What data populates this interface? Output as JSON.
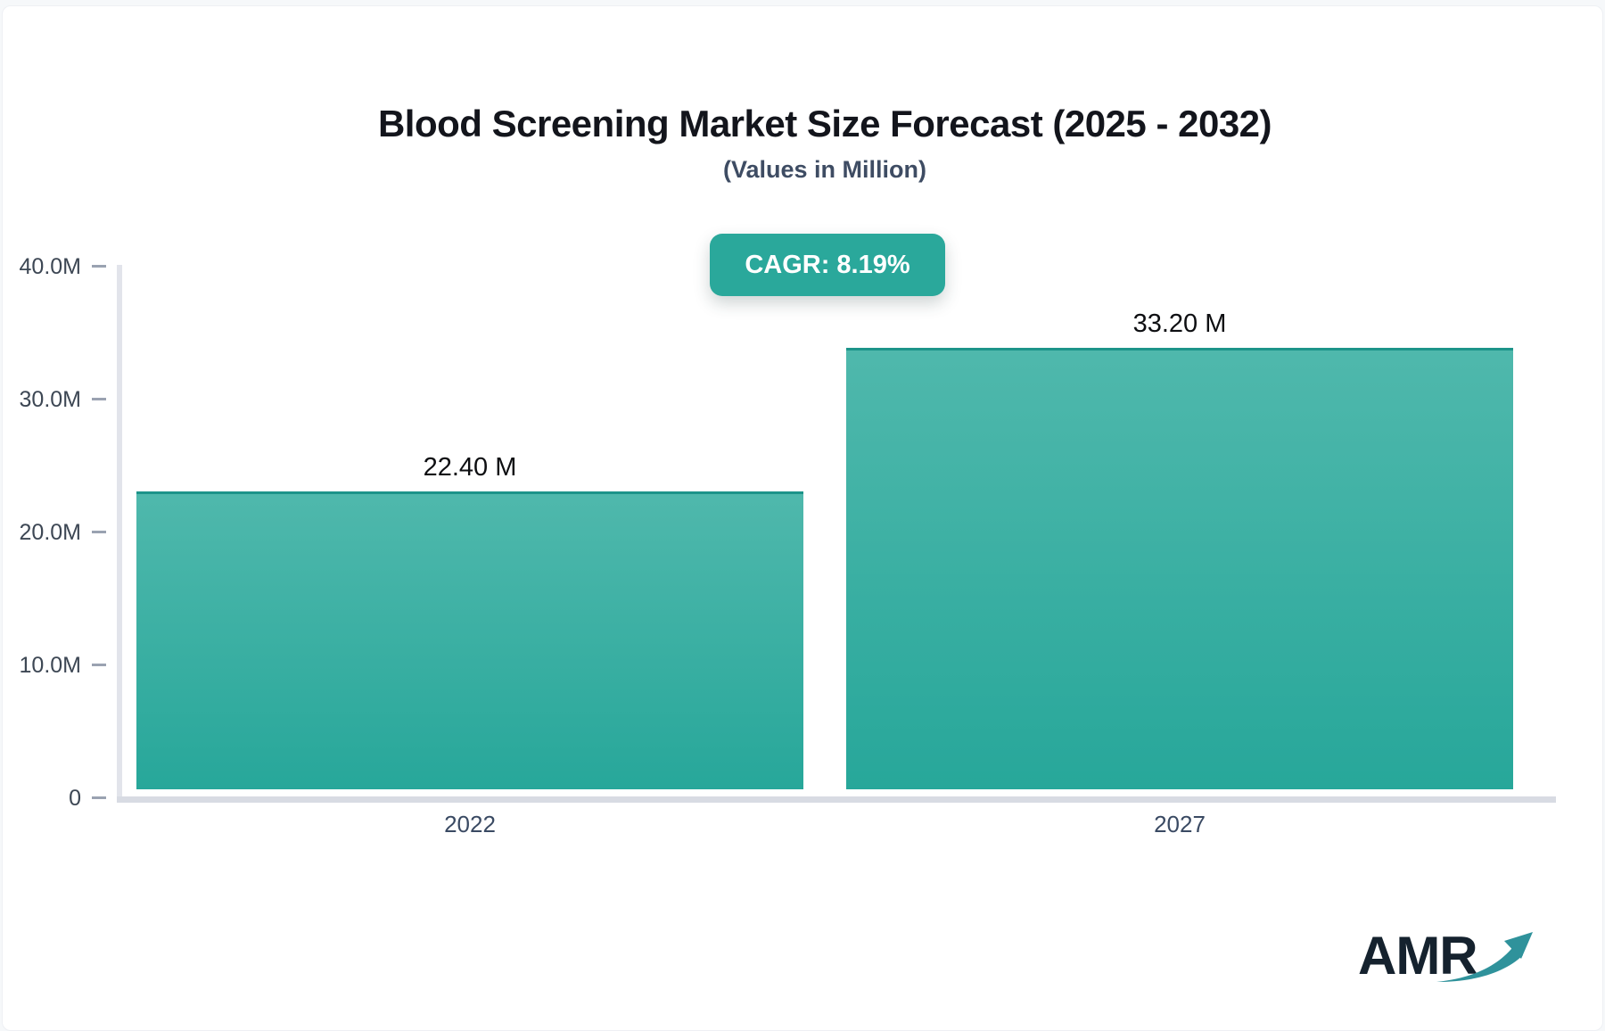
{
  "chart_data": {
    "type": "bar",
    "title": "Blood Screening Market Size Forecast (2025 - 2032)",
    "subtitle": "(Values in Million)",
    "cagr_badge": "CAGR: 8.19%",
    "categories": [
      "2022",
      "2027"
    ],
    "values": [
      22.4,
      33.2
    ],
    "value_labels": [
      "22.40 M",
      "33.20 M"
    ],
    "xlabel": "",
    "ylabel": "",
    "ylim": [
      0,
      40
    ],
    "y_tick_labels": [
      "40.0M",
      "30.0M",
      "20.0M",
      "10.0M",
      "0"
    ],
    "grid": false,
    "legend": "none",
    "colors": {
      "bar_gradient_top": "#4fb8ac",
      "bar_gradient_bottom": "#27a79a",
      "bar_top_edge": "#1d948a",
      "badge_background": "#2aa89b",
      "badge_text": "#ffffff",
      "axis_line": "#dfe2ea",
      "tick": "#9aa2b1",
      "axis_label": "#3d4754",
      "title_text": "#13151c",
      "subtitle_text": "#3e4c63"
    }
  },
  "logo": {
    "text": "AMR",
    "arrow_icon_color": "#2f929b",
    "text_color": "#15222e"
  }
}
